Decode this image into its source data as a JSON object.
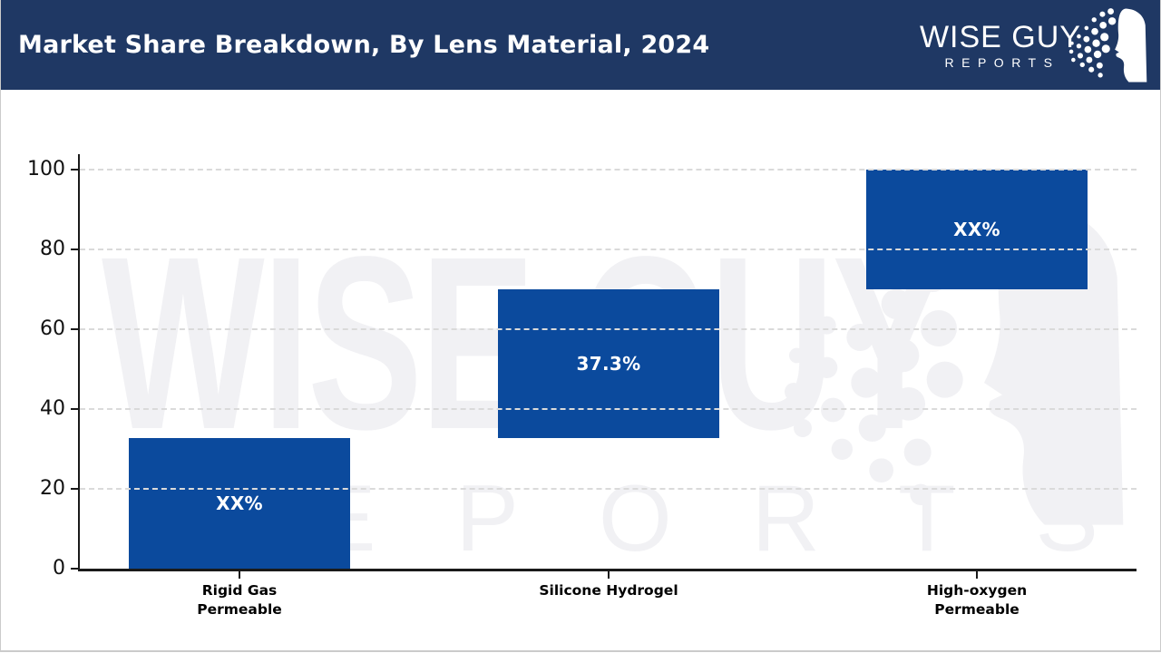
{
  "header": {
    "title": "Market Share Breakdown, By Lens Material, 2024",
    "logo": {
      "line1": "WISE GUY",
      "line2": "REPORTS",
      "icon": "dot-face-icon"
    }
  },
  "watermark": {
    "line1": "WISE GUY",
    "line2": "REPORTS",
    "icon": "dot-face-watermark-icon"
  },
  "chart_data": {
    "type": "bar",
    "subtype": "waterfall",
    "title": "Market Share Breakdown, By Lens Material, 2024",
    "categories": [
      "Rigid Gas Permeable",
      "Silicone Hydrogel",
      "High-oxygen Permeable"
    ],
    "category_lines": [
      [
        "Rigid Gas",
        "Permeable"
      ],
      [
        "Silicone Hydrogel"
      ],
      [
        "High-oxygen",
        "Permeable"
      ]
    ],
    "series": [
      {
        "name": "Rigid Gas Permeable",
        "start": 0,
        "end": 32.7,
        "label": "XX%"
      },
      {
        "name": "Silicone Hydrogel",
        "start": 32.7,
        "end": 70,
        "label": "37.3%"
      },
      {
        "name": "High-oxygen Permeable",
        "start": 70,
        "end": 100,
        "label": "XX%"
      }
    ],
    "ylim": [
      0,
      100
    ],
    "yticks": [
      0,
      20,
      40,
      60,
      80,
      100
    ],
    "xlabel": "",
    "ylabel": "",
    "grid": "horizontal-dashed-above-bars",
    "legend": "none",
    "bar_color": "#0b4a9d",
    "bar_label_color": "#ffffff"
  },
  "colors": {
    "header_bg": "#1f3864",
    "bar": "#0b4a9d",
    "grid": "#dadada",
    "axis": "#1a1a1a",
    "watermark": "#f1f1f4",
    "page_border": "#cbcbcb"
  }
}
